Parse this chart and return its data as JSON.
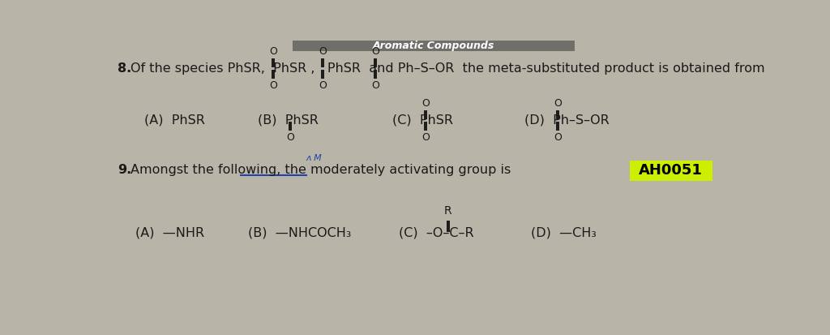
{
  "bg_color": "#b8b4a8",
  "header_color": "#706e68",
  "header_text": "Aromatic Compounds",
  "text_color": "#1a1a1a",
  "ah_bg": "#ccee00",
  "ah_label": "AH0051",
  "q8_main": "Of the species PhSR,  PhSR ,   PhSR  and Ph–S–OR  the meta-substituted product is obtained from",
  "q9_main": "Amongst the following, the moderately activating group is",
  "underline_color": "#2244aa",
  "annotation_color": "#2244aa"
}
